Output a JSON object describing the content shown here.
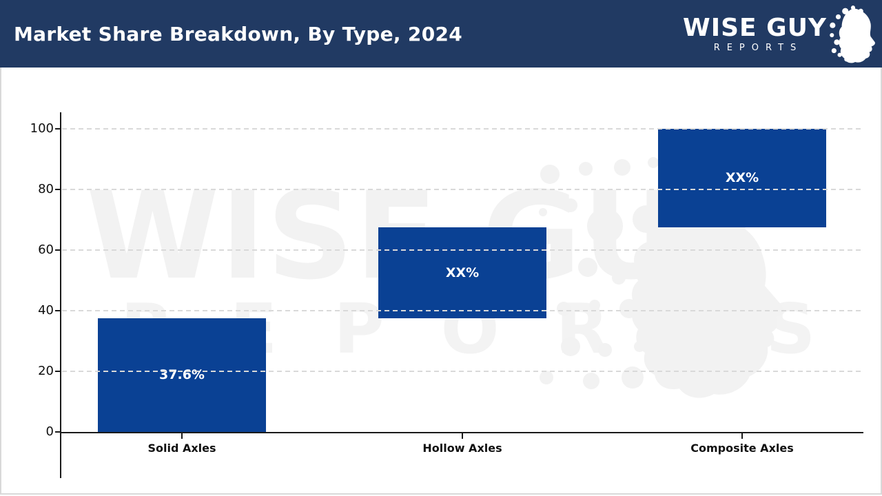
{
  "header": {
    "title": "Market Share Breakdown, By Type, 2024",
    "logo": {
      "line1": "WISE GUY",
      "line2": "REPORTS"
    }
  },
  "watermark": {
    "line1": "WISE GUY",
    "line2": "REPORTS"
  },
  "colors": {
    "header_bg": "#213A63",
    "bar": "#0A4194",
    "grid": "#D9D9D9",
    "axis": "#1A1A1A",
    "bar_label_text": "#FFFFFF",
    "watermark": "#F2F2F2"
  },
  "chart_data": {
    "type": "bar",
    "variant": "waterfall",
    "title": "Market Share Breakdown, By Type, 2024",
    "categories": [
      "Solid Axles",
      "Hollow Axles",
      "Composite Axles"
    ],
    "segments": [
      {
        "category": "Solid Axles",
        "start": 0,
        "end": 37.6,
        "label": "37.6%"
      },
      {
        "category": "Hollow Axles",
        "start": 37.6,
        "end": 67.6,
        "label": "XX%"
      },
      {
        "category": "Composite Axles",
        "start": 67.6,
        "end": 100,
        "label": "XX%"
      }
    ],
    "y_ticks": [
      0,
      20,
      40,
      60,
      80,
      100
    ],
    "ylim": [
      0,
      105
    ],
    "xlabel": "",
    "ylabel": "",
    "grid": "dashed-horizontal",
    "legend": "none"
  }
}
